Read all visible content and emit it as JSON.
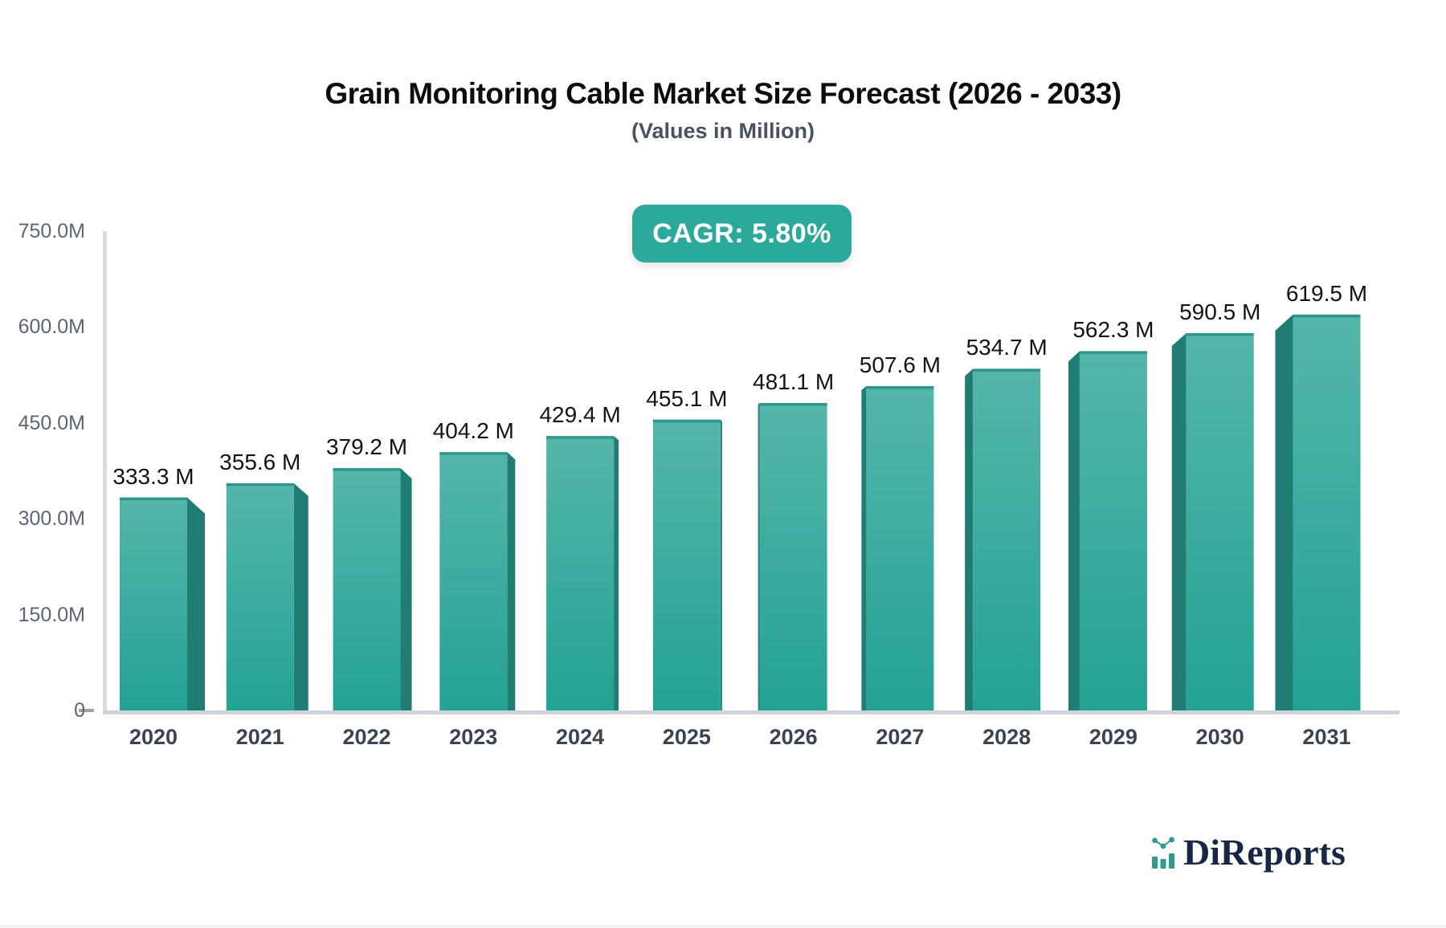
{
  "header": {
    "title": "Grain Monitoring Cable Market Size Forecast (2026 - 2033)",
    "subtitle": "(Values in Million)"
  },
  "badge": {
    "label": "CAGR: 5.80%",
    "color": "#2ba99b"
  },
  "chart_data": {
    "type": "bar",
    "title": "Grain Monitoring Cable Market Size Forecast (2026 - 2033)",
    "subtitle": "(Values in Million)",
    "categories": [
      "2020",
      "2021",
      "2022",
      "2023",
      "2024",
      "2025",
      "2026",
      "2027",
      "2028",
      "2029",
      "2030",
      "2031"
    ],
    "values": [
      333.3,
      355.6,
      379.2,
      404.2,
      429.4,
      455.1,
      481.1,
      507.6,
      534.7,
      562.3,
      590.5,
      619.5
    ],
    "value_labels": [
      "333.3 M",
      "355.6 M",
      "379.2 M",
      "404.2 M",
      "429.4 M",
      "455.1 M",
      "481.1 M",
      "507.6 M",
      "534.7 M",
      "562.3 M",
      "590.5 M",
      "619.5 M"
    ],
    "unit": "Million",
    "ylim": [
      0,
      750
    ],
    "yticks": [
      0,
      150,
      300,
      450,
      600,
      750
    ],
    "ytick_labels": [
      "0",
      "150.0M",
      "300.0M",
      "450.0M",
      "600.0M",
      "750.0M"
    ],
    "grid": false,
    "legend": false,
    "colors": {
      "bar_top": "#55b6ab",
      "bar_bottom": "#23a294",
      "bar_edge": "#2e968b",
      "bar_side": "#1f7d73"
    }
  },
  "logo": {
    "text": "DiReports",
    "icon": "bar-line-chart-icon",
    "accent": "#2f9a90",
    "navy": "#182844"
  }
}
